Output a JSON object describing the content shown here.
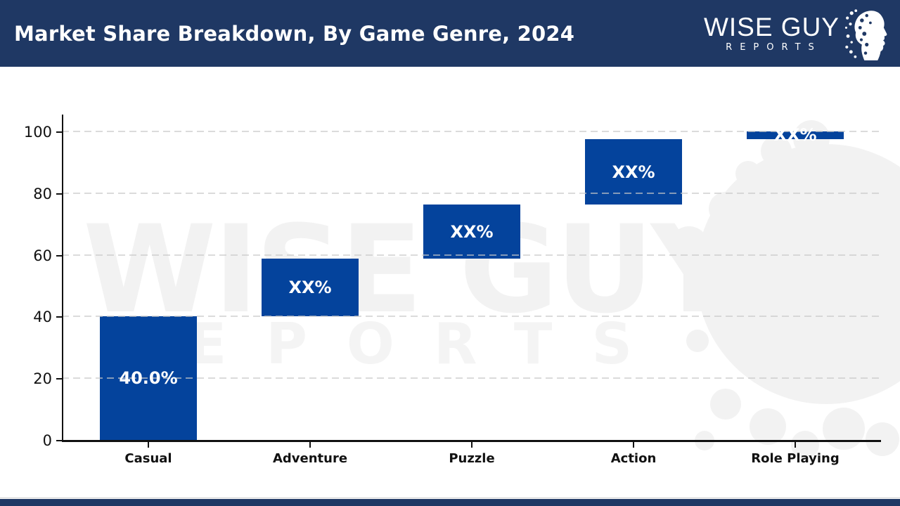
{
  "header": {
    "title": "Market Share Breakdown, By Game Genre, 2024",
    "logo": {
      "wordmark": "WISE GUY",
      "subtext": "REPORTS"
    }
  },
  "watermark": {
    "line1": "WISE GUY",
    "line2": "REPORTS"
  },
  "chart_data": {
    "type": "bar",
    "subtype": "waterfall",
    "title": "Market Share Breakdown, By Game Genre, 2024",
    "xlabel": "",
    "ylabel": "",
    "categories": [
      "Casual",
      "Adventure",
      "Puzzle",
      "Action",
      "Role Playing"
    ],
    "series": [
      {
        "name": "Market Share %",
        "segments": [
          {
            "category": "Casual",
            "start": 0,
            "end": 40,
            "label": "40.0%"
          },
          {
            "category": "Adventure",
            "start": 40,
            "end": 58.75,
            "label": "XX%"
          },
          {
            "category": "Puzzle",
            "start": 58.75,
            "end": 76.25,
            "label": "XX%"
          },
          {
            "category": "Action",
            "start": 76.25,
            "end": 97.5,
            "label": "XX%"
          },
          {
            "category": "Role Playing",
            "start": 97.5,
            "end": 100,
            "label": "XX%"
          }
        ]
      }
    ],
    "y_ticks": [
      0,
      20,
      40,
      60,
      80,
      100
    ],
    "ylim": [
      0,
      105.5
    ],
    "grid": "horizontal-dashed",
    "legend": "none",
    "bar_color": "#04439C",
    "bar_label_color": "#FFFFFF"
  },
  "colors": {
    "header_bg": "#1F3864",
    "footer_bg": "#1F3864",
    "bar": "#04439C",
    "grid": "#D9D9D9",
    "axis": "#000000",
    "watermark": "#F2F2F2",
    "title_text": "#FFFFFF",
    "tick_text": "#111111"
  }
}
